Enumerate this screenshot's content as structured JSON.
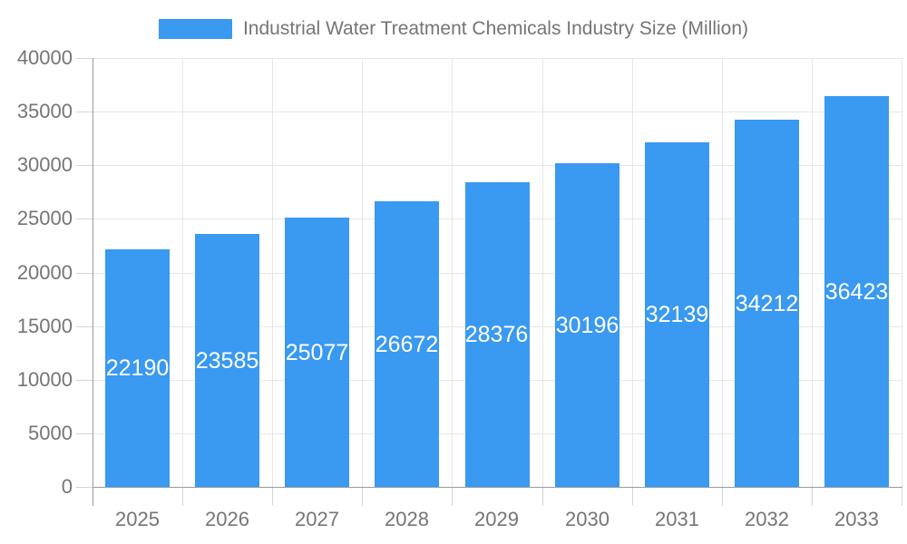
{
  "chart_data": {
    "type": "bar",
    "title": "Industrial Water Treatment Chemicals Industry Size (Million)",
    "categories": [
      "2025",
      "2026",
      "2027",
      "2028",
      "2029",
      "2030",
      "2031",
      "2032",
      "2033"
    ],
    "values": [
      22190,
      23585,
      25077,
      26672,
      28376,
      30196,
      32139,
      34212,
      36423
    ],
    "xlabel": "",
    "ylabel": "",
    "ylim": [
      0,
      40000
    ],
    "ytick_step": 5000,
    "ytick_labels": [
      "0",
      "5000",
      "10000",
      "15000",
      "20000",
      "25000",
      "30000",
      "35000",
      "40000"
    ],
    "grid": true,
    "legend_position": "top-center",
    "value_labels": "inside-center",
    "colors": {
      "bar": "#3A99F0",
      "bar_label_text": "#FFFFFF",
      "axis_text": "#757575",
      "grid_line": "#E6E6E6",
      "axis_line": "#9B9B9B",
      "tick": "#D4D4D4",
      "background": "#FFFFFF"
    }
  }
}
